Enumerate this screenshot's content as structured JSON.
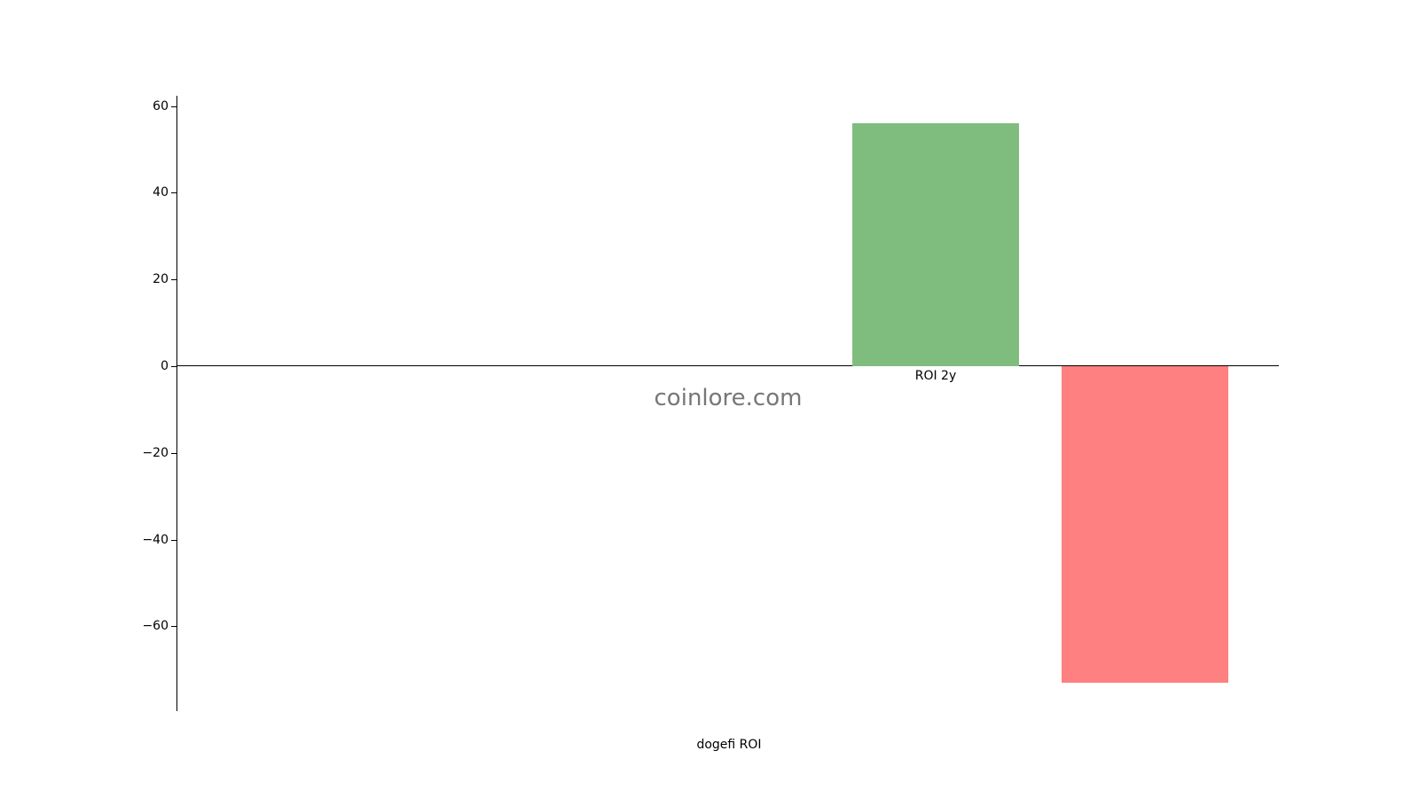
{
  "chart_data": {
    "type": "bar",
    "title": "",
    "xlabel": "dogefi ROI",
    "ylabel": "",
    "categories": [
      "ROI 2y",
      ""
    ],
    "values": [
      56,
      -73
    ],
    "bar_colors": [
      "#7fbd7f",
      "#ff8080"
    ],
    "yticks": [
      60,
      40,
      20,
      0,
      -20,
      -40,
      -60
    ],
    "ytick_labels": [
      "60",
      "40",
      "20",
      "0",
      "−20",
      "−40",
      "−60"
    ],
    "ylim": [
      -79.5,
      62.5
    ],
    "grid": false,
    "legend": false,
    "axis_color": "#000000",
    "watermark": "coinlore.com",
    "watermark_color": "#777777"
  }
}
